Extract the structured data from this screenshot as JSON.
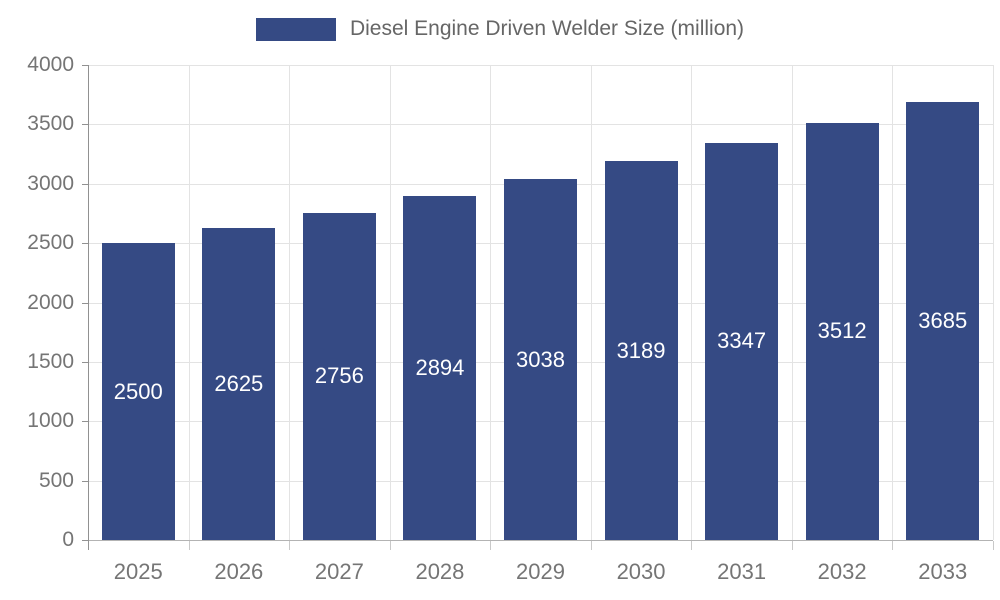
{
  "chart_data": {
    "type": "bar",
    "title": "Diesel Engine Driven Welder Size (million)",
    "legend_position": "top",
    "categories": [
      "2025",
      "2026",
      "2027",
      "2028",
      "2029",
      "2030",
      "2031",
      "2032",
      "2033"
    ],
    "series": [
      {
        "name": "Diesel Engine Driven Welder Size (million)",
        "values": [
          2500,
          2625,
          2756,
          2894,
          3038,
          3189,
          3347,
          3512,
          3685
        ]
      }
    ],
    "xlabel": "",
    "ylabel": "",
    "ylim": [
      0,
      4000
    ],
    "ytick_step": 500,
    "grid": true,
    "value_labels_inside_bars": true,
    "colors": {
      "bar": "#354a84",
      "value_label": "#ffffff",
      "axis_text": "#757575",
      "legend_text": "#666666",
      "gridline": "#e3e3e3",
      "y_axis_line": "#919191",
      "x_axis_line": "#b3b3b3",
      "x_tick": "#c9c9c9",
      "background": "#ffffff"
    }
  }
}
